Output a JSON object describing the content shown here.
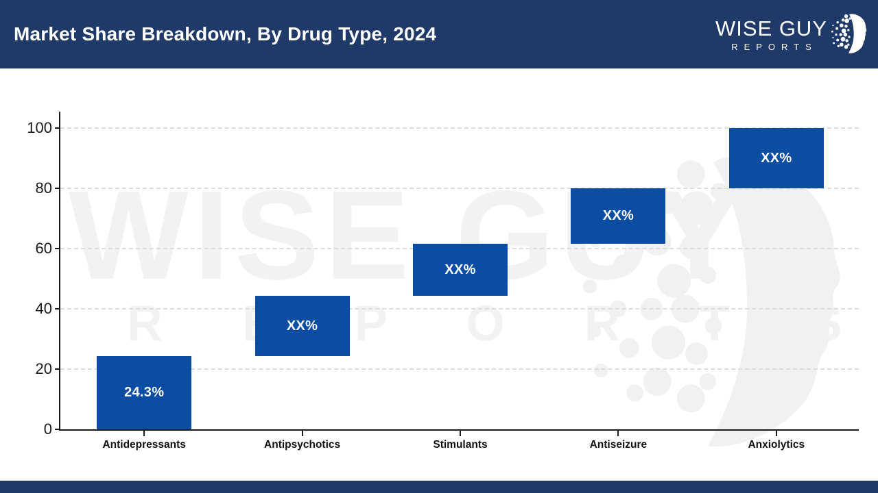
{
  "colors": {
    "navy": "#1f3a68",
    "bar_blue": "#0b4da2",
    "axis": "#1a1a1a",
    "gridline": "#dcdcdc",
    "watermark": "#f2f2f3"
  },
  "header": {
    "title": "Market Share Breakdown, By Drug Type, 2024",
    "logo_line1": "WISE GUY",
    "logo_line2": "REPORTS"
  },
  "watermark": {
    "line1": "WISE GUY",
    "line2": "R E P O R T S"
  },
  "chart_data": {
    "type": "bar",
    "subtype": "waterfall",
    "title": "Market Share Breakdown, By Drug Type, 2024",
    "categories": [
      "Antidepressants",
      "Antipsychotics",
      "Stimulants",
      "Antiseizure",
      "Anxiolytics"
    ],
    "segments": [
      {
        "category": "Antidepressants",
        "start": 0,
        "end": 24.3,
        "label": "24.3%"
      },
      {
        "category": "Antipsychotics",
        "start": 24.3,
        "end": 44.3,
        "label": "XX%"
      },
      {
        "category": "Stimulants",
        "start": 44.3,
        "end": 61.5,
        "label": "XX%"
      },
      {
        "category": "Antiseizure",
        "start": 61.5,
        "end": 80.0,
        "label": "XX%"
      },
      {
        "category": "Anxiolytics",
        "start": 80.0,
        "end": 100.0,
        "label": "XX%"
      }
    ],
    "y_ticks": [
      0,
      20,
      40,
      60,
      80,
      100
    ],
    "ylim": [
      0,
      105
    ],
    "xlabel": "",
    "ylabel": "",
    "grid": "horizontal-dashed",
    "legend": "none",
    "bar_color": "#0b4da2",
    "bar_label_color": "#ffffff"
  }
}
